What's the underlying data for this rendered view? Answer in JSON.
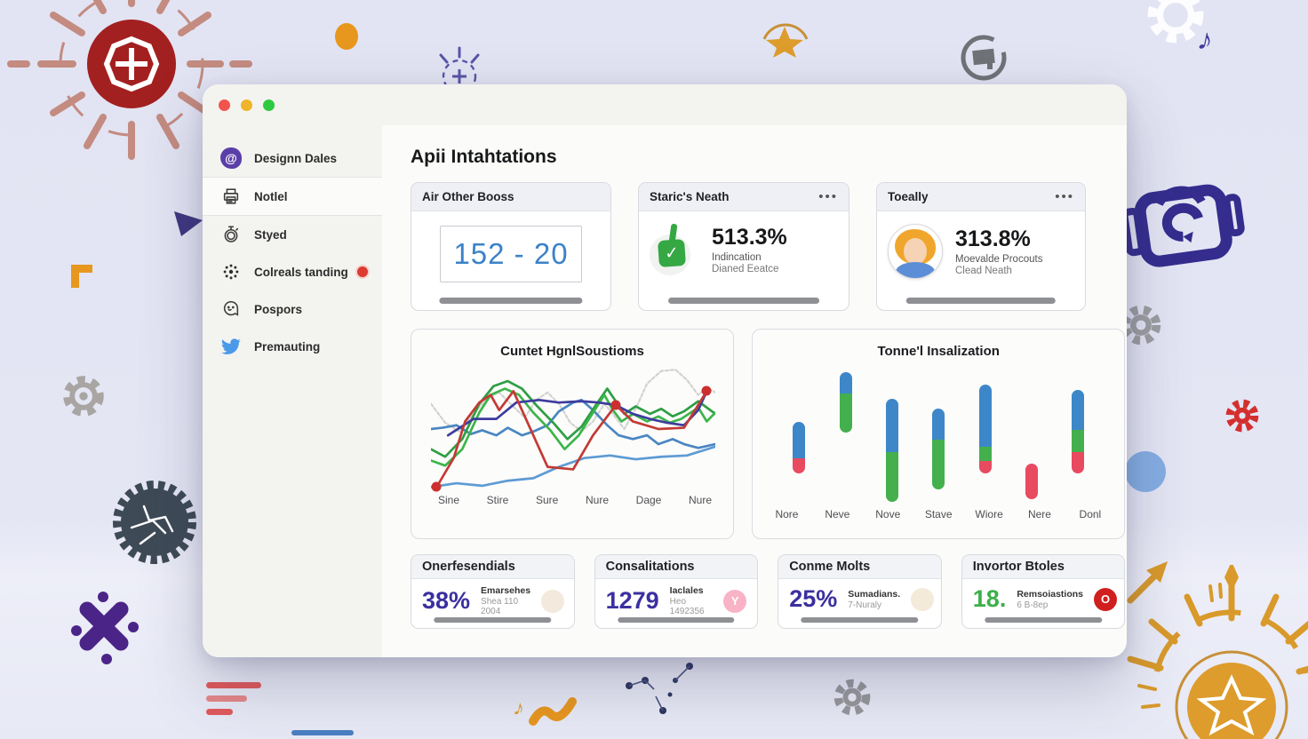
{
  "window": {
    "traffic_lights": [
      "close",
      "minimize",
      "zoom"
    ]
  },
  "sidebar": {
    "items": [
      {
        "label": "Designn Dales",
        "icon": "at-swirl-icon",
        "selected": false,
        "badge": false
      },
      {
        "label": "Notlel",
        "icon": "printer-icon",
        "selected": true,
        "badge": false
      },
      {
        "label": "Styed",
        "icon": "stopwatch-icon",
        "selected": false,
        "badge": false
      },
      {
        "label": "Colreals tanding",
        "icon": "dotted-circle-icon",
        "selected": false,
        "badge": true
      },
      {
        "label": "Pospors",
        "icon": "chat-bubble-icon",
        "selected": false,
        "badge": false
      },
      {
        "label": "Premauting",
        "icon": "twitter-bird-icon",
        "selected": false,
        "badge": false
      }
    ]
  },
  "header": {
    "title": "Apii Intahtations"
  },
  "stat_cards": [
    {
      "title": "Air Other Booss",
      "value": "152 - 20",
      "value_color": "#3b82c8"
    },
    {
      "title": "Staric's Neath",
      "menu": "•••",
      "value": "513.3%",
      "line1": "Indincation",
      "line2": "Dianed Eeatce",
      "icon": "green-check-tool-icon"
    },
    {
      "title": "Toeally",
      "menu": "•••",
      "value": "313.8%",
      "line1": "Moevalde Procouts",
      "line2": "Clead Neath",
      "icon": "avatar"
    }
  ],
  "chart_data": [
    {
      "type": "line",
      "title": "Cuntet HgnlSoustioms",
      "categories": [
        "Sine",
        "Stire",
        "Sure",
        "Nure",
        "Dage",
        "Nure"
      ],
      "grid": false,
      "axis_labels_shown": "x-only",
      "series": [
        {
          "name": "dashed-gray",
          "color": "#d2d2d0",
          "dashed": true,
          "points": [
            [
              0,
              30
            ],
            [
              5,
              45
            ],
            [
              10,
              52
            ],
            [
              15,
              38
            ],
            [
              20,
              25
            ],
            [
              24,
              21
            ],
            [
              28,
              30
            ],
            [
              33,
              41
            ],
            [
              37,
              27
            ],
            [
              41,
              21
            ],
            [
              45,
              30
            ],
            [
              49,
              45
            ],
            [
              53,
              52
            ],
            [
              57,
              44
            ],
            [
              61,
              30
            ],
            [
              64,
              38
            ],
            [
              68,
              50
            ],
            [
              72,
              34
            ],
            [
              76,
              14
            ],
            [
              81,
              4
            ],
            [
              86,
              3
            ],
            [
              90,
              11
            ],
            [
              94,
              23
            ],
            [
              97,
              17
            ],
            [
              100,
              21
            ]
          ]
        },
        {
          "name": "steel-low",
          "color": "#5d9bd3",
          "points": [
            [
              0,
              96
            ],
            [
              9,
              93
            ],
            [
              18,
              95
            ],
            [
              27,
              91
            ],
            [
              36,
              89
            ],
            [
              41,
              84
            ],
            [
              45,
              80
            ],
            [
              54,
              73
            ],
            [
              63,
              71
            ],
            [
              72,
              74
            ],
            [
              81,
              72
            ],
            [
              90,
              71
            ],
            [
              100,
              64
            ]
          ]
        },
        {
          "name": "steel-mid",
          "color": "#4a86c2",
          "points": [
            [
              0,
              50
            ],
            [
              4,
              49
            ],
            [
              9,
              47
            ],
            [
              14,
              54
            ],
            [
              18,
              51
            ],
            [
              23,
              55
            ],
            [
              27,
              49
            ],
            [
              32,
              55
            ],
            [
              36,
              52
            ],
            [
              41,
              47
            ],
            [
              45,
              36
            ],
            [
              50,
              29
            ],
            [
              53,
              27
            ],
            [
              57,
              35
            ],
            [
              62,
              47
            ],
            [
              66,
              55
            ],
            [
              71,
              58
            ],
            [
              76,
              55
            ],
            [
              80,
              62
            ],
            [
              85,
              58
            ],
            [
              89,
              62
            ],
            [
              94,
              65
            ],
            [
              100,
              62
            ]
          ]
        },
        {
          "name": "green-dark",
          "color": "#2f9e44",
          "points": [
            [
              0,
              66
            ],
            [
              5,
              72
            ],
            [
              11,
              58
            ],
            [
              17,
              30
            ],
            [
              22,
              16
            ],
            [
              27,
              12
            ],
            [
              32,
              18
            ],
            [
              37,
              31
            ],
            [
              43,
              45
            ],
            [
              48,
              58
            ],
            [
              53,
              48
            ],
            [
              58,
              31
            ],
            [
              62,
              18
            ],
            [
              65,
              28
            ],
            [
              68,
              38
            ],
            [
              72,
              32
            ],
            [
              77,
              38
            ],
            [
              81,
              34
            ],
            [
              85,
              40
            ],
            [
              89,
              36
            ],
            [
              94,
              28
            ],
            [
              100,
              38
            ]
          ]
        },
        {
          "name": "green-bright",
          "color": "#3cb54a",
          "points": [
            [
              0,
              75
            ],
            [
              5,
              79
            ],
            [
              11,
              66
            ],
            [
              17,
              37
            ],
            [
              21,
              23
            ],
            [
              26,
              18
            ],
            [
              31,
              23
            ],
            [
              36,
              37
            ],
            [
              42,
              51
            ],
            [
              47,
              66
            ],
            [
              52,
              55
            ],
            [
              57,
              37
            ],
            [
              61,
              23
            ],
            [
              64,
              35
            ],
            [
              67,
              44
            ],
            [
              71,
              38
            ],
            [
              76,
              44
            ],
            [
              80,
              40
            ],
            [
              84,
              45
            ],
            [
              88,
              42
            ],
            [
              94,
              33
            ],
            [
              97,
              44
            ],
            [
              100,
              37
            ]
          ]
        },
        {
          "name": "navy",
          "color": "#3d3c9e",
          "points": [
            [
              6,
              55
            ],
            [
              15,
              42
            ],
            [
              23,
              42
            ],
            [
              30,
              29
            ],
            [
              38,
              27
            ],
            [
              45,
              29
            ],
            [
              53,
              28
            ],
            [
              59,
              29
            ],
            [
              65,
              31
            ],
            [
              71,
              38
            ],
            [
              77,
              42
            ],
            [
              83,
              45
            ],
            [
              89,
              47
            ],
            [
              94,
              35
            ],
            [
              97,
              20
            ]
          ]
        },
        {
          "name": "red",
          "color": "#c23b34",
          "marker_color": "#cc2f2f",
          "points": [
            [
              2,
              96
            ],
            [
              8,
              73
            ],
            [
              12,
              44
            ],
            [
              17,
              29
            ],
            [
              21,
              23
            ],
            [
              24,
              35
            ],
            [
              29,
              20
            ],
            [
              34,
              45
            ],
            [
              41,
              80
            ],
            [
              50,
              82
            ],
            [
              57,
              55
            ],
            [
              65,
              31
            ],
            [
              71,
              44
            ],
            [
              80,
              50
            ],
            [
              89,
              49
            ],
            [
              97,
              20
            ]
          ],
          "markers": [
            [
              2,
              96
            ],
            [
              65,
              31
            ],
            [
              97,
              20
            ]
          ]
        }
      ]
    },
    {
      "type": "stacked-floating-bar",
      "title": "Tonne'l Insalization",
      "categories": [
        "Nore",
        "Neve",
        "Nove",
        "Stave",
        "Wiore",
        "Nere",
        "Donl"
      ],
      "palette": {
        "blue": "#3d87c9",
        "green": "#43b04d",
        "red": "#e84a5f"
      },
      "value_scale": "percent-of-plot-height-from-top",
      "bars": [
        {
          "label": "Nore",
          "segments": [
            {
              "color": "blue",
              "from": 39,
              "to": 66
            },
            {
              "color": "red",
              "from": 66,
              "to": 77
            }
          ]
        },
        {
          "label": "Neve",
          "segments": [
            {
              "color": "blue",
              "from": 2,
              "to": 18
            },
            {
              "color": "green",
              "from": 18,
              "to": 47
            }
          ]
        },
        {
          "label": "Nove",
          "segments": [
            {
              "color": "blue",
              "from": 22,
              "to": 61
            },
            {
              "color": "green",
              "from": 61,
              "to": 98
            }
          ]
        },
        {
          "label": "Stave",
          "segments": [
            {
              "color": "blue",
              "from": 29,
              "to": 52
            },
            {
              "color": "green",
              "from": 52,
              "to": 89
            }
          ]
        },
        {
          "label": "Wiore",
          "segments": [
            {
              "color": "blue",
              "from": 11,
              "to": 57
            },
            {
              "color": "green",
              "from": 57,
              "to": 68
            },
            {
              "color": "red",
              "from": 68,
              "to": 77
            }
          ]
        },
        {
          "label": "Nere",
          "segments": [
            {
              "color": "red",
              "from": 70,
              "to": 96
            }
          ]
        },
        {
          "label": "Donl",
          "segments": [
            {
              "color": "blue",
              "from": 15,
              "to": 45
            },
            {
              "color": "green",
              "from": 45,
              "to": 61
            },
            {
              "color": "red",
              "from": 61,
              "to": 77
            }
          ]
        }
      ]
    }
  ],
  "kpi_cards": [
    {
      "title": "Onerfesendials",
      "value": "38%",
      "value_color": "#3b2fa0",
      "line1": "Emarsehes",
      "line2": "Shea 110 2004",
      "icon": "faint-circle-icon",
      "icon_bg": "#f3e9dc",
      "icon_letter": ""
    },
    {
      "title": "Consalitations",
      "value": "1279",
      "value_color": "#3b2fa0",
      "line1": "Iaclales",
      "line2": "Heo 1492356",
      "icon": "pink-circle-y-icon",
      "icon_bg": "#f8b3c6",
      "icon_letter": "Y"
    },
    {
      "title": "Conme Molts",
      "value": "25%",
      "value_color": "#3b2fa0",
      "line1": "Sumadians.",
      "line2": "7-Nuraly",
      "icon": "faint-circle-icon",
      "icon_bg": "#f3ead9",
      "icon_letter": ""
    },
    {
      "title": "Invortor Btoles",
      "value": "18.",
      "value_color": "#3cb049",
      "line1": "Remsoiastions",
      "line2": "6 B-8ep",
      "icon": "red-record-icon",
      "icon_bg": "#cf1f1f",
      "icon_letter": "O"
    }
  ],
  "background_icons": [
    "red-target-sunburst-icon",
    "orange-dot-icon",
    "purple-virus-icon",
    "gold-star-arc-icon",
    "gray-envelope-circle-icon",
    "purple-music-note-icon",
    "indigo-camera-doodle-icon",
    "gray-gear-icon",
    "red-virus-icon",
    "blue-dot-icon",
    "gold-sunburst-star-icon",
    "gold-arrow-icon",
    "purple-cross-icon",
    "slate-scallop-badge-icon",
    "orange-bracket-icon",
    "purple-triangle-icon",
    "red-lines-icon",
    "orange-squiggle-icon",
    "constellation-icon",
    "blue-line-icon",
    "gold-music-note-icon"
  ]
}
